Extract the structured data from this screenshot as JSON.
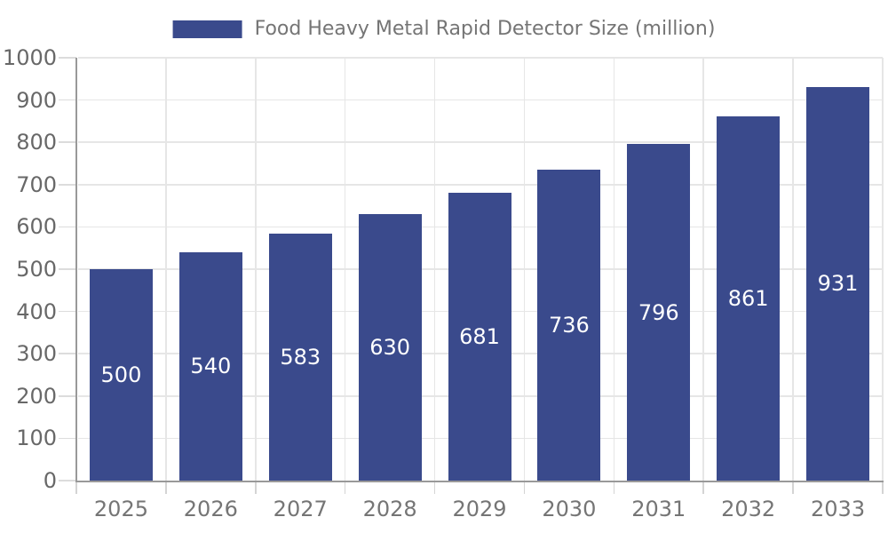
{
  "legend": {
    "label": "Food Heavy Metal Rapid Detector Size (million)"
  },
  "chart_data": {
    "type": "bar",
    "title": "Food Heavy Metal Rapid Detector Size (million)",
    "categories": [
      "2025",
      "2026",
      "2027",
      "2028",
      "2029",
      "2030",
      "2031",
      "2032",
      "2033"
    ],
    "series": [
      {
        "name": "Food Heavy Metal Rapid Detector Size (million)",
        "values": [
          500,
          540,
          583,
          630,
          681,
          736,
          796,
          861,
          931
        ]
      }
    ],
    "xlabel": "",
    "ylabel": "",
    "ylim": [
      0,
      1000
    ],
    "ytick_step": 100,
    "grid": true,
    "legend_position": "top-center",
    "bar_label_position": "inside-center",
    "colors": {
      "bar": "#3A4A8C",
      "axis_line": "#999999",
      "gridline": "#e6e6e6",
      "tick": "#d4d4d4",
      "axis_label": "#6f6f6f",
      "legend_text": "#757575",
      "bar_label": "#ffffff",
      "background": "#ffffff"
    }
  }
}
